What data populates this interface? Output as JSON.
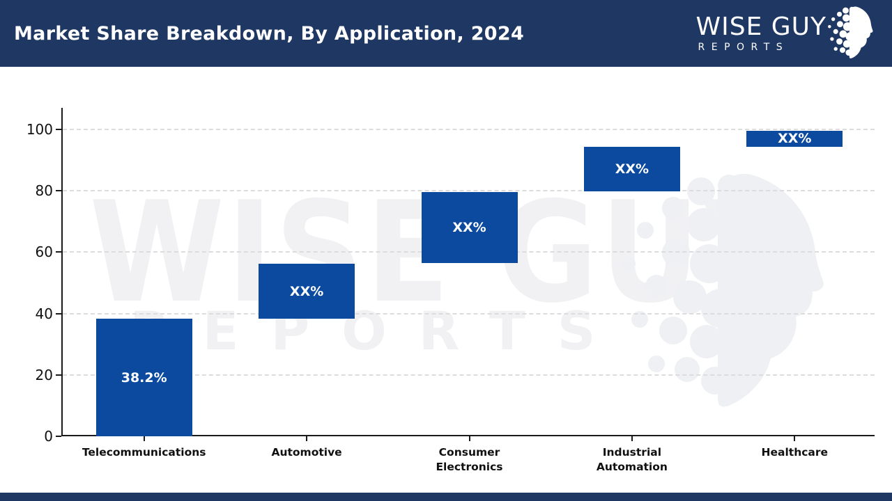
{
  "header": {
    "title": "Market Share Breakdown, By Application, 2024",
    "logo": {
      "line1": "WISE GUY",
      "line2": "REPORTS",
      "icon": "wise-guy-head-icon"
    }
  },
  "watermark": {
    "line1": "WISE GUY",
    "line2": "REPORTS",
    "icon": "wise-guy-head-icon"
  },
  "colors": {
    "header_bg": "#1f3763",
    "footer_bg": "#1f3763",
    "bar": "#0b4a9f",
    "bar_label": "#ffffff",
    "axis": "#1a1a1a",
    "grid": "#dcdcdc",
    "watermark": "#f1f1f4"
  },
  "chart_data": {
    "type": "bar",
    "subtype": "waterfall",
    "title": "Market Share Breakdown, By Application, 2024",
    "categories": [
      [
        "Telecommunications"
      ],
      [
        "Automotive"
      ],
      [
        "Consumer",
        "Electronics"
      ],
      [
        "Industrial",
        "Automation"
      ],
      [
        "Healthcare"
      ]
    ],
    "segments": [
      {
        "category": "Telecommunications",
        "start": 0,
        "end": 38.2,
        "label": "38.2%"
      },
      {
        "category": "Automotive",
        "start": 38.2,
        "end": 56.2,
        "label": "XX%"
      },
      {
        "category": "Consumer Electronics",
        "start": 56.4,
        "end": 79.6,
        "label": "XX%"
      },
      {
        "category": "Industrial Automation",
        "start": 79.8,
        "end": 94.3,
        "label": "XX%"
      },
      {
        "category": "Healthcare",
        "start": 94.3,
        "end": 99.6,
        "label": "XX%"
      }
    ],
    "y_ticks": [
      0,
      20,
      40,
      60,
      80,
      100
    ],
    "ylim": [
      0,
      107
    ],
    "xlabel": "",
    "ylabel": "",
    "grid": "horizontal-dashed",
    "legend": "none"
  }
}
